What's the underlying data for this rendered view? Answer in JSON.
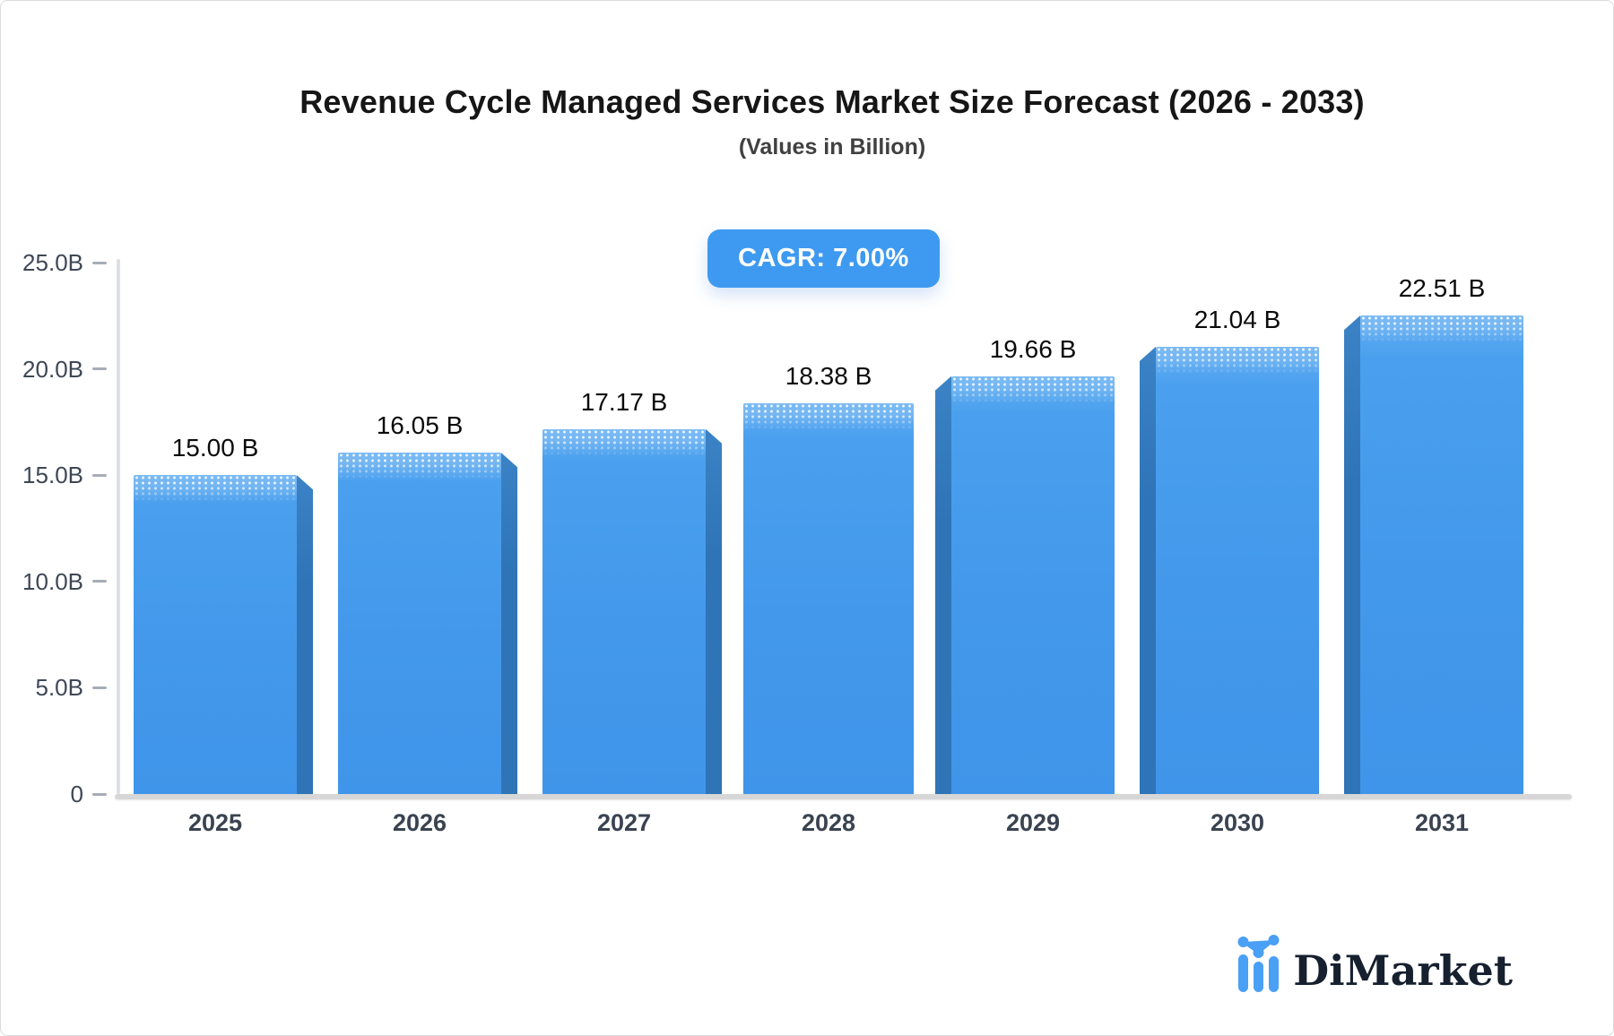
{
  "page": {
    "title": "Revenue Cycle Managed Services Market Size Forecast (2026 - 2033)",
    "subtitle": "(Values in Billion)",
    "cagr_badge": "CAGR: 7.00%"
  },
  "branding": {
    "name": "DiMarket",
    "icon": "mini-bar-chart-icon"
  },
  "colors": {
    "bar_fill": "#459CEC",
    "bar_fill_light": "#63AEF2",
    "bar_side_face": "#2E74B6",
    "badge_bg": "#3E9AF0",
    "axis_line": "#DCDFE3",
    "baseline": "#D7D7D7",
    "tick": "#A7ADB5",
    "axis_label_text": "#3F4756",
    "category_label_text": "#3A4350",
    "value_label_text": "#0B0B0B",
    "title_text": "#161616",
    "subtitle_text": "#404040",
    "logo_text": "#16202E",
    "logo_icon": "#4AA0F5"
  },
  "chart_data": {
    "type": "bar",
    "title": "Revenue Cycle Managed Services Market Size Forecast (2026 - 2033)",
    "subtitle": "(Values in Billion)",
    "cagr_label": "CAGR: 7.00%",
    "unit": "Billion",
    "categories": [
      "2025",
      "2026",
      "2027",
      "2028",
      "2029",
      "2030",
      "2031"
    ],
    "values": [
      15.0,
      16.05,
      17.17,
      18.38,
      19.66,
      21.04,
      22.51
    ],
    "value_labels": [
      "15.00 B",
      "16.05 B",
      "17.17 B",
      "18.38 B",
      "19.66 B",
      "21.04 B",
      "22.51 B"
    ],
    "ylim": [
      0,
      25
    ],
    "yticks": [
      {
        "value": 0,
        "label": "0"
      },
      {
        "value": 5,
        "label": "5.0B"
      },
      {
        "value": 10,
        "label": "10.0B"
      },
      {
        "value": 15,
        "label": "15.0B"
      },
      {
        "value": 20,
        "label": "20.0B"
      },
      {
        "value": 25,
        "label": "25.0B"
      }
    ],
    "xlabel": "",
    "ylabel": "",
    "grid": false,
    "legend": false,
    "bar_style": "3d-beveled"
  }
}
